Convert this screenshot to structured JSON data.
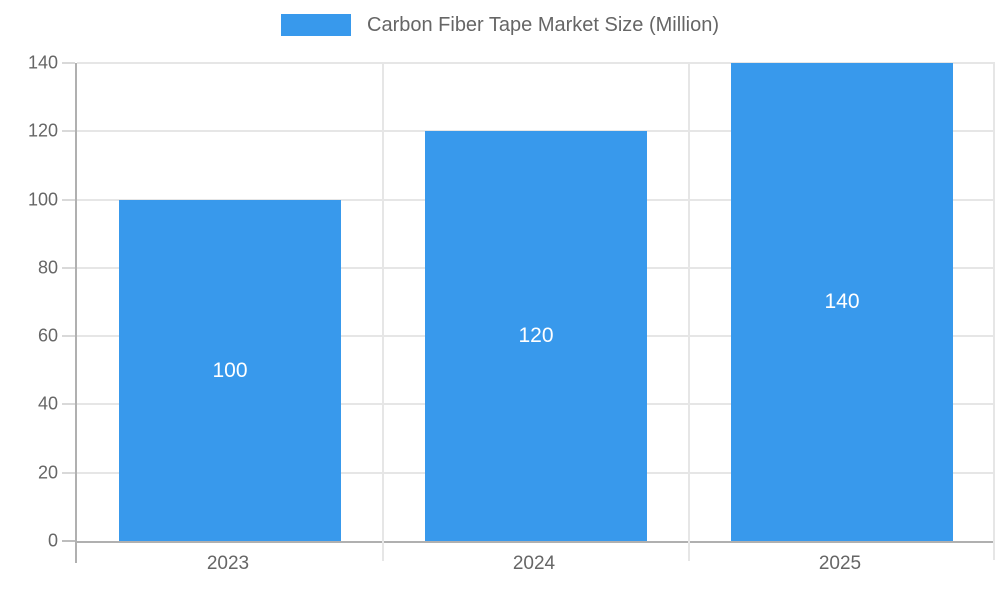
{
  "legend": {
    "label": "Carbon Fiber Tape Market Size (Million)"
  },
  "chart_data": {
    "type": "bar",
    "title": "Carbon Fiber Tape Market Size (Million)",
    "categories": [
      "2023",
      "2024",
      "2025"
    ],
    "values": [
      100,
      120,
      140
    ],
    "bar_labels": [
      "100",
      "120",
      "140"
    ],
    "series": [
      {
        "name": "Carbon Fiber Tape Market Size (Million)",
        "values": [
          100,
          120,
          140
        ]
      }
    ],
    "xlabel": "",
    "ylabel": "",
    "ylim": [
      0,
      140
    ],
    "ytick_step": 20,
    "yticks": [
      0,
      20,
      40,
      60,
      80,
      100,
      120,
      140
    ],
    "grid": true,
    "legend_position": "top-center",
    "colors": {
      "bar": "#3899EC",
      "grid": "#e6e6e6",
      "axis": "#b0b0b0",
      "axis_text": "#666666",
      "bar_label_text": "#ffffff",
      "background": "#ffffff"
    }
  }
}
